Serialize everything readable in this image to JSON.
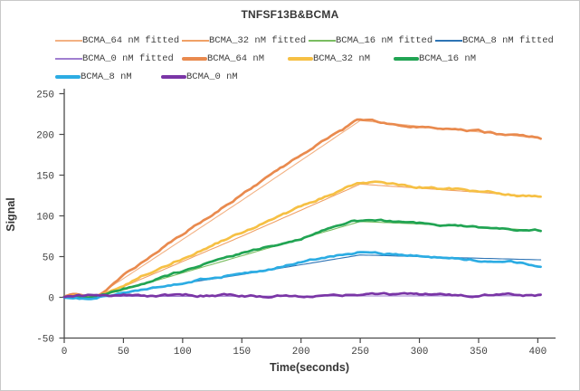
{
  "chart_data": {
    "type": "line",
    "title": "TNFSF13B&BCMA",
    "xlabel": "Time(seconds)",
    "ylabel": "Signal",
    "xlim": [
      0,
      415
    ],
    "ylim": [
      -50,
      250
    ],
    "x_ticks": [
      0,
      50,
      100,
      150,
      200,
      250,
      300,
      350,
      400
    ],
    "y_ticks": [
      -50,
      0,
      50,
      100,
      150,
      200,
      250
    ],
    "grid": false,
    "legend_position": "top",
    "axis_color": "#4a4a4a",
    "series": [
      {
        "name": "BCMA_64 nM fitted",
        "role": "fitted",
        "color": "#F3B183",
        "width": 1.1,
        "noise": 0,
        "points": [
          [
            0,
            1
          ],
          [
            25,
            0
          ],
          [
            50,
            23
          ],
          [
            100,
            71
          ],
          [
            150,
            119
          ],
          [
            200,
            168
          ],
          [
            250,
            217
          ],
          [
            300,
            210
          ],
          [
            350,
            203
          ],
          [
            403,
            195
          ]
        ]
      },
      {
        "name": "BCMA_32 nM fitted",
        "role": "fitted",
        "color": "#F0A167",
        "width": 1.1,
        "noise": 0,
        "points": [
          [
            0,
            0
          ],
          [
            25,
            0
          ],
          [
            50,
            13
          ],
          [
            100,
            44
          ],
          [
            150,
            75
          ],
          [
            200,
            107
          ],
          [
            250,
            139
          ],
          [
            300,
            134
          ],
          [
            350,
            129
          ],
          [
            403,
            123
          ]
        ]
      },
      {
        "name": "BCMA_16 nM fitted",
        "role": "fitted",
        "color": "#7ABD61",
        "width": 1.1,
        "noise": 0,
        "points": [
          [
            0,
            0
          ],
          [
            25,
            0
          ],
          [
            50,
            9
          ],
          [
            100,
            30
          ],
          [
            150,
            51
          ],
          [
            200,
            72
          ],
          [
            250,
            93
          ],
          [
            300,
            90
          ],
          [
            350,
            86
          ],
          [
            403,
            82
          ]
        ]
      },
      {
        "name": "BCMA_8 nM fitted",
        "role": "fitted",
        "color": "#2E74B5",
        "width": 1.1,
        "noise": 0,
        "points": [
          [
            0,
            0
          ],
          [
            25,
            0
          ],
          [
            50,
            5
          ],
          [
            100,
            17
          ],
          [
            150,
            28
          ],
          [
            200,
            40
          ],
          [
            250,
            52
          ],
          [
            300,
            50
          ],
          [
            350,
            48
          ],
          [
            403,
            46
          ]
        ]
      },
      {
        "name": "BCMA_0 nM fitted",
        "role": "fitted",
        "color": "#A07FD0",
        "width": 1.1,
        "noise": 0,
        "points": [
          [
            0,
            1
          ],
          [
            403,
            2
          ]
        ]
      },
      {
        "name": "BCMA_64 nM",
        "role": "raw",
        "color": "#E98A4E",
        "width": 2.7,
        "noise": 2.0,
        "points": [
          [
            0,
            2
          ],
          [
            8,
            4
          ],
          [
            15,
            3
          ],
          [
            22,
            0
          ],
          [
            28,
            1
          ],
          [
            50,
            27
          ],
          [
            75,
            53
          ],
          [
            100,
            78
          ],
          [
            125,
            103
          ],
          [
            150,
            127
          ],
          [
            175,
            151
          ],
          [
            200,
            175
          ],
          [
            225,
            198
          ],
          [
            248,
            217
          ],
          [
            255,
            218
          ],
          [
            262,
            216
          ],
          [
            275,
            214
          ],
          [
            300,
            210
          ],
          [
            325,
            206
          ],
          [
            350,
            203
          ],
          [
            375,
            199
          ],
          [
            403,
            195
          ]
        ]
      },
      {
        "name": "BCMA_32 nM",
        "role": "raw",
        "color": "#F6C044",
        "width": 2.7,
        "noise": 2.0,
        "points": [
          [
            0,
            0
          ],
          [
            10,
            1
          ],
          [
            20,
            -1
          ],
          [
            28,
            0
          ],
          [
            50,
            15
          ],
          [
            75,
            32
          ],
          [
            100,
            48
          ],
          [
            125,
            64
          ],
          [
            150,
            80
          ],
          [
            175,
            96
          ],
          [
            200,
            111
          ],
          [
            225,
            127
          ],
          [
            248,
            141
          ],
          [
            257,
            142
          ],
          [
            270,
            140
          ],
          [
            300,
            136
          ],
          [
            325,
            133
          ],
          [
            350,
            130
          ],
          [
            375,
            127
          ],
          [
            403,
            123
          ]
        ]
      },
      {
        "name": "BCMA_16 nM",
        "role": "raw",
        "color": "#21A453",
        "width": 2.7,
        "noise": 1.8,
        "points": [
          [
            0,
            0
          ],
          [
            12,
            1
          ],
          [
            25,
            0
          ],
          [
            50,
            10
          ],
          [
            75,
            21
          ],
          [
            100,
            32
          ],
          [
            125,
            43
          ],
          [
            150,
            53
          ],
          [
            175,
            63
          ],
          [
            200,
            73
          ],
          [
            225,
            85
          ],
          [
            245,
            93
          ],
          [
            255,
            95
          ],
          [
            265,
            94
          ],
          [
            280,
            93
          ],
          [
            300,
            91
          ],
          [
            325,
            89
          ],
          [
            350,
            86
          ],
          [
            375,
            84
          ],
          [
            403,
            82
          ]
        ]
      },
      {
        "name": "BCMA_8 nM",
        "role": "raw",
        "color": "#2CACE3",
        "width": 2.7,
        "noise": 1.8,
        "points": [
          [
            0,
            0
          ],
          [
            12,
            -1
          ],
          [
            25,
            0
          ],
          [
            50,
            6
          ],
          [
            75,
            12
          ],
          [
            100,
            18
          ],
          [
            125,
            24
          ],
          [
            150,
            30
          ],
          [
            175,
            36
          ],
          [
            200,
            43
          ],
          [
            225,
            50
          ],
          [
            250,
            55
          ],
          [
            258,
            56
          ],
          [
            270,
            54
          ],
          [
            300,
            51
          ],
          [
            325,
            48
          ],
          [
            350,
            46
          ],
          [
            375,
            44
          ],
          [
            403,
            39
          ]
        ]
      },
      {
        "name": "BCMA_0 nM",
        "role": "raw",
        "color": "#7A35A6",
        "width": 2.7,
        "noise": 2.2,
        "points": [
          [
            0,
            1
          ],
          [
            50,
            2
          ],
          [
            100,
            2
          ],
          [
            150,
            2
          ],
          [
            200,
            2
          ],
          [
            250,
            3
          ],
          [
            300,
            3
          ],
          [
            350,
            3
          ],
          [
            403,
            3
          ]
        ]
      }
    ]
  },
  "legend": {
    "items": [
      {
        "label": "BCMA_64 nM fitted",
        "color": "#F3B183",
        "fitted": true
      },
      {
        "label": "BCMA_32 nM fitted",
        "color": "#F0A167",
        "fitted": true
      },
      {
        "label": "BCMA_16 nM fitted",
        "color": "#7ABD61",
        "fitted": true
      },
      {
        "label": "BCMA_8 nM fitted",
        "color": "#2E74B5",
        "fitted": true
      },
      {
        "label": "BCMA_0 nM fitted",
        "color": "#A07FD0",
        "fitted": true
      },
      {
        "label": "BCMA_64 nM",
        "color": "#E98A4E",
        "fitted": false
      },
      {
        "label": "BCMA_32 nM",
        "color": "#F6C044",
        "fitted": false
      },
      {
        "label": "BCMA_16 nM",
        "color": "#21A453",
        "fitted": false
      },
      {
        "label": "BCMA_8 nM",
        "color": "#2CACE3",
        "fitted": false
      },
      {
        "label": "BCMA_0 nM",
        "color": "#7A35A6",
        "fitted": false
      }
    ]
  }
}
